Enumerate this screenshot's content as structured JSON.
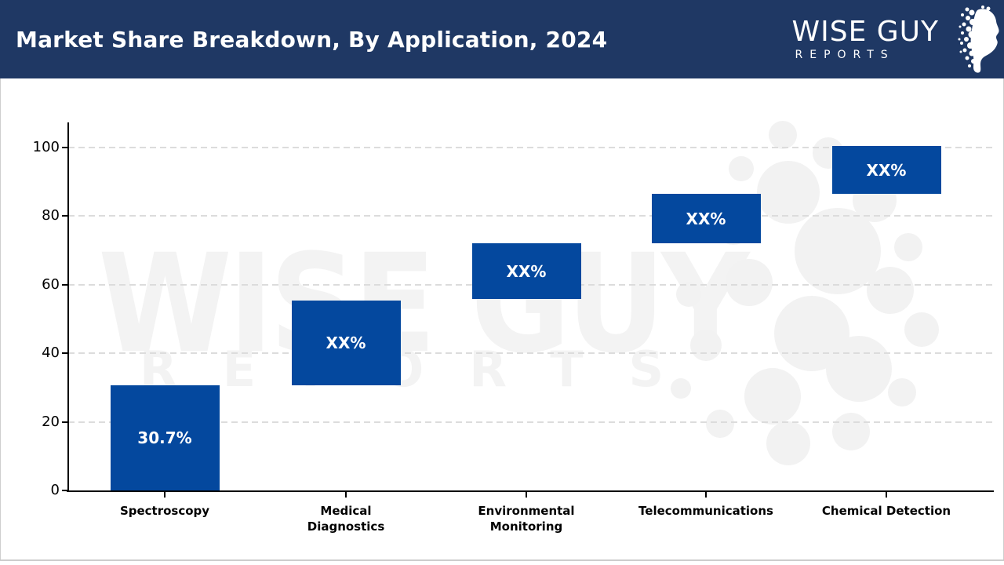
{
  "header": {
    "title": "Market Share Breakdown, By Application, 2024",
    "logo_line1": "WISE GUY",
    "logo_line2": "REPORTS"
  },
  "watermark": {
    "line1": "WISE GUY",
    "line2": "REPORTS"
  },
  "colors": {
    "header_bg": "#1f3864",
    "bar": "#04489e",
    "grid": "#dcdcdc",
    "axis": "#000000",
    "bar_label": "#ffffff"
  },
  "chart_data": {
    "type": "bar",
    "subtype": "waterfall",
    "title": "Market Share Breakdown, By Application, 2024",
    "categories": [
      "Spectroscopy",
      "Medical\nDiagnostics",
      "Environmental\nMonitoring",
      "Telecommunications",
      "Chemical Detection"
    ],
    "series": [
      {
        "name": "Market Share (%)",
        "segments": [
          {
            "category": "Spectroscopy",
            "start": 0,
            "end": 30.7,
            "label": "30.7%"
          },
          {
            "category": "Medical Diagnostics",
            "start": 30.7,
            "end": 55.4,
            "label": "XX%"
          },
          {
            "category": "Environmental Monitoring",
            "start": 55.7,
            "end": 71.9,
            "label": "XX%"
          },
          {
            "category": "Telecommunications",
            "start": 72.1,
            "end": 86.3,
            "label": "XX%"
          },
          {
            "category": "Chemical Detection",
            "start": 86.4,
            "end": 100.3,
            "label": "XX%"
          }
        ]
      }
    ],
    "ylim": [
      0,
      100
    ],
    "yticks": [
      0,
      20,
      40,
      60,
      80,
      100
    ],
    "xlabel": "",
    "ylabel": "",
    "grid": "horizontal-dashed",
    "legend": "none"
  }
}
